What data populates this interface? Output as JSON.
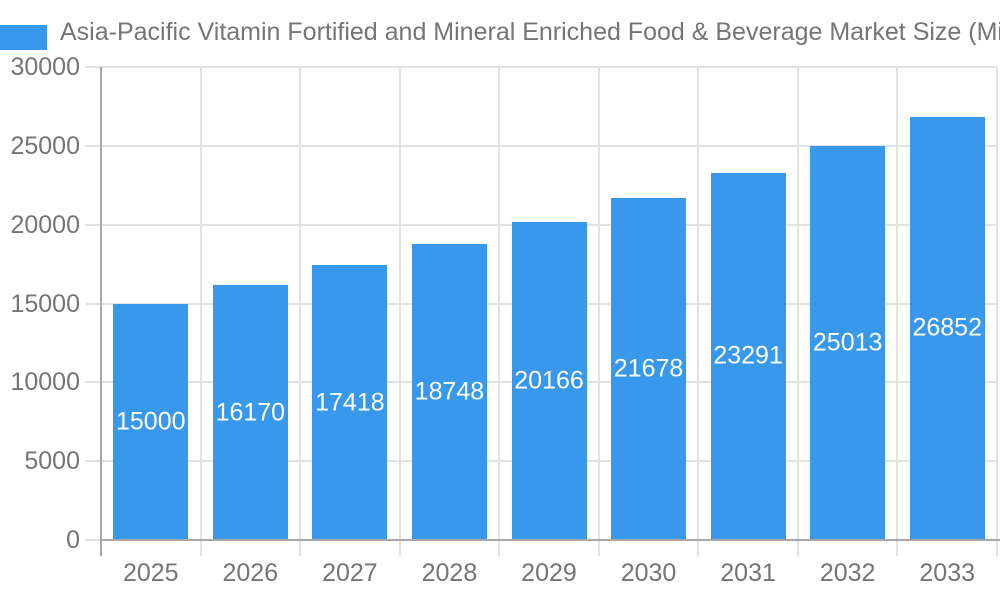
{
  "chart_data": {
    "type": "bar",
    "title": "Asia-Pacific Vitamin Fortified and Mineral Enriched Food & Beverage Market Size (Million",
    "categories": [
      "2025",
      "2026",
      "2027",
      "2028",
      "2029",
      "2030",
      "2031",
      "2032",
      "2033"
    ],
    "values": [
      15000,
      16170,
      17418,
      18748,
      20166,
      21678,
      23291,
      25013,
      26852
    ],
    "yticks": [
      0,
      5000,
      10000,
      15000,
      20000,
      25000,
      30000
    ],
    "ylim": [
      0,
      30000
    ],
    "xlabel": "",
    "ylabel": "",
    "grid": true,
    "legend_position": "top-left",
    "value_labels": "inside-center",
    "colors": {
      "bar": "#3899EC",
      "value_label": "#FFFFFF",
      "axis_text": "#757575",
      "gridline": "#E2E2E2",
      "axis_line": "#A8A8A8"
    }
  }
}
